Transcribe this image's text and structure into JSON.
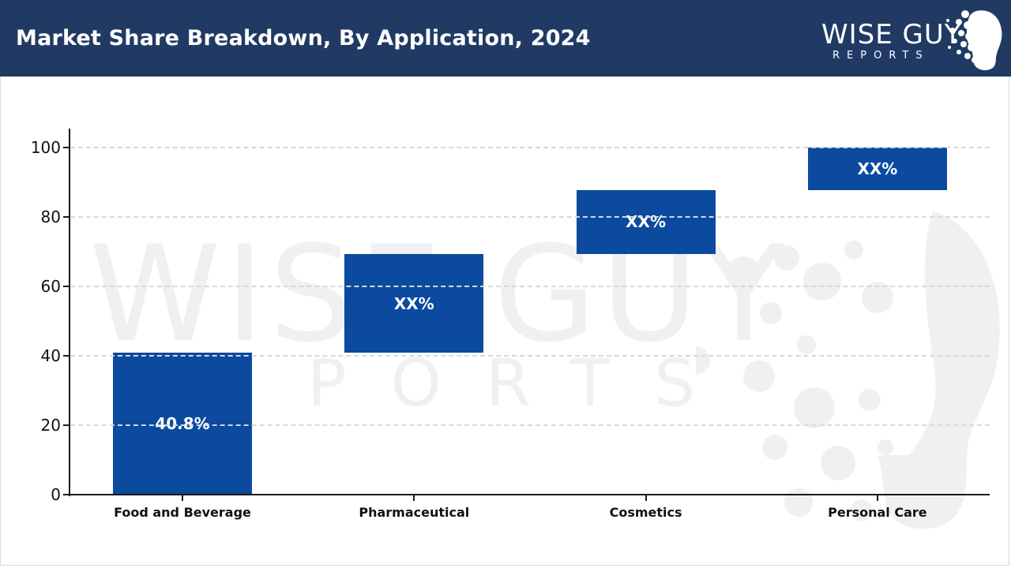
{
  "header": {
    "title": "Market Share Breakdown, By Application, 2024",
    "logo": {
      "line1": "WISE GUY",
      "line2": "REPORTS"
    }
  },
  "watermark": {
    "line1": "WISE GUY",
    "line2": "PORTS"
  },
  "colors": {
    "header_bg": "#213a64",
    "bar_blue": "#0b4a9e",
    "watermark_gray": "#f0f0f3",
    "gridline_gray": "#d8d8d8",
    "axis_black": "#1a1a1a"
  },
  "chart_data": {
    "type": "bar",
    "subtype": "waterfall",
    "title": "Market Share Breakdown, By Application, 2024",
    "categories": [
      "Food and Beverage",
      "Pharmaceutical",
      "Cosmetics",
      "Personal Care"
    ],
    "bars": [
      {
        "category": "Food and Beverage",
        "start": 0,
        "end": 40.8,
        "label": "40.8%"
      },
      {
        "category": "Pharmaceutical",
        "start": 40.8,
        "end": 69.4,
        "label": "XX%"
      },
      {
        "category": "Cosmetics",
        "start": 69.4,
        "end": 87.8,
        "label": "XX%"
      },
      {
        "category": "Personal Care",
        "start": 87.8,
        "end": 100,
        "label": "XX%"
      }
    ],
    "yticks": [
      {
        "value": 0,
        "label": "0"
      },
      {
        "value": 20,
        "label": "20"
      },
      {
        "value": 40,
        "label": "40"
      },
      {
        "value": 60,
        "label": "60"
      },
      {
        "value": 80,
        "label": "80"
      },
      {
        "value": 100,
        "label": "100"
      }
    ],
    "ylim": [
      0,
      100
    ],
    "xlabel": "",
    "ylabel": "",
    "grid": "dashed horizontal, drawn above bars",
    "legend": "none",
    "bar_color": "#0b4a9e"
  }
}
